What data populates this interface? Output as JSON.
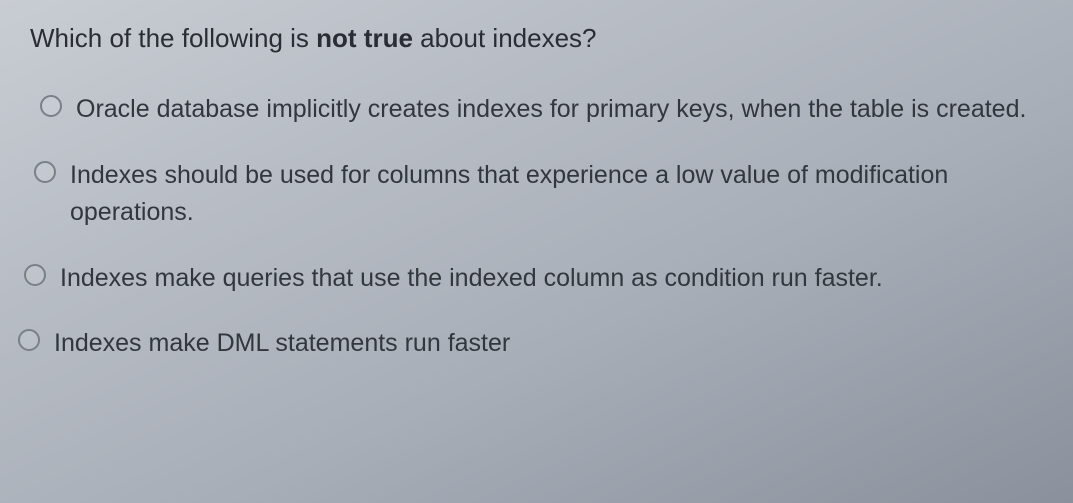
{
  "question": {
    "prefix": "Which of the following is ",
    "emphasis": "not true",
    "suffix": " about indexes?"
  },
  "options": [
    {
      "text": "Oracle database implicitly creates indexes for primary keys, when the table is created."
    },
    {
      "text": "Indexes should be used for columns that experience a low value of modification operations."
    },
    {
      "text": "Indexes make queries that use the indexed column as condition run faster."
    },
    {
      "text": "Indexes make DML statements run faster"
    }
  ],
  "styling": {
    "background_gradient_start": "#c8cdd3",
    "background_gradient_end": "#8a919c",
    "text_color": "#2a2d33",
    "option_text_color": "#32363d",
    "radio_border_color": "#7a8088",
    "question_fontsize": 26,
    "option_fontsize": 25
  }
}
